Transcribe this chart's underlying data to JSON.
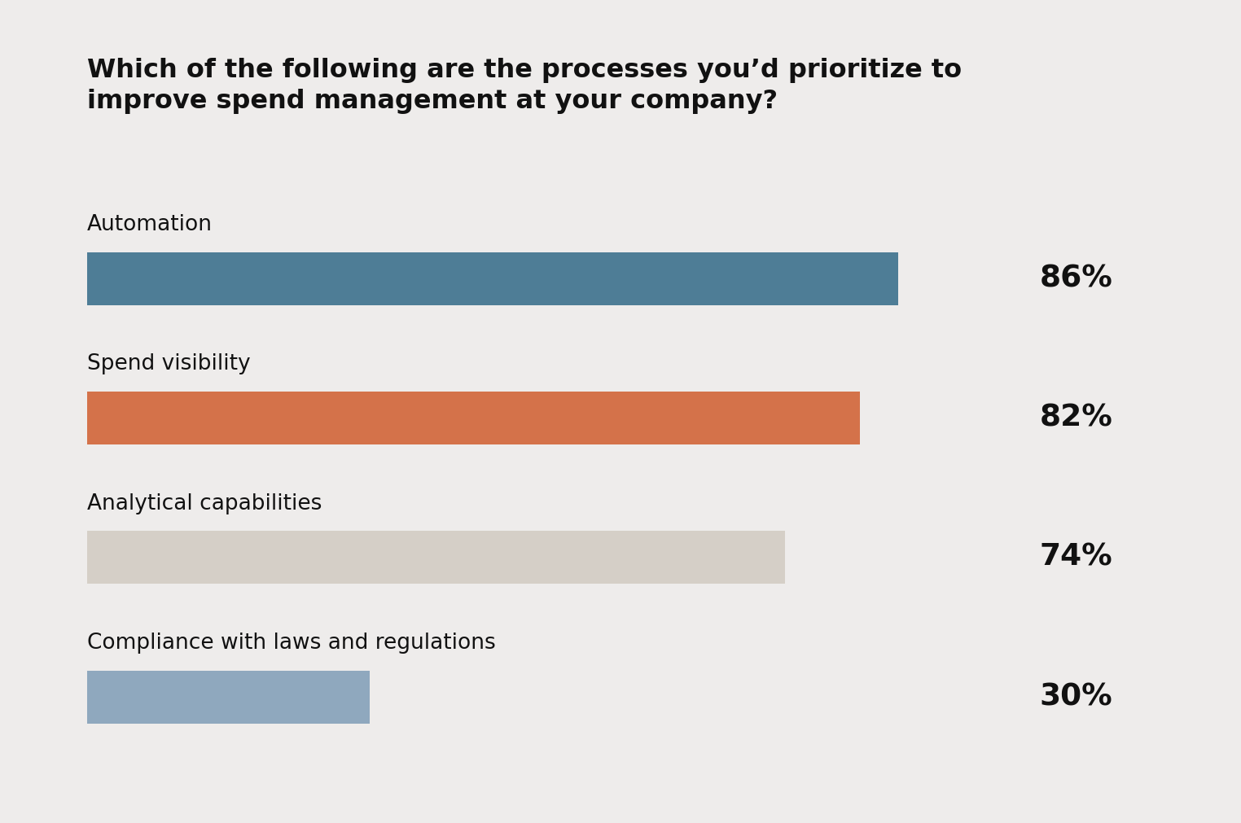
{
  "title": "Which of the following are the processes you’d prioritize to\nimprove spend management at your company?",
  "categories": [
    "Automation",
    "Spend visibility",
    "Analytical capabilities",
    "Compliance with laws and regulations"
  ],
  "values": [
    86,
    82,
    74,
    30
  ],
  "bar_colors": [
    "#4e7d96",
    "#d4724a",
    "#d5cfc7",
    "#8fa8be"
  ],
  "background_color": "#eeeceb",
  "title_fontsize": 23,
  "label_fontsize": 19,
  "percentage_fontsize": 27,
  "bar_height": 0.38,
  "xlim": [
    0,
    100
  ],
  "figsize": [
    15.24,
    10.11
  ],
  "dpi": 100,
  "bar_gap": 1.0
}
